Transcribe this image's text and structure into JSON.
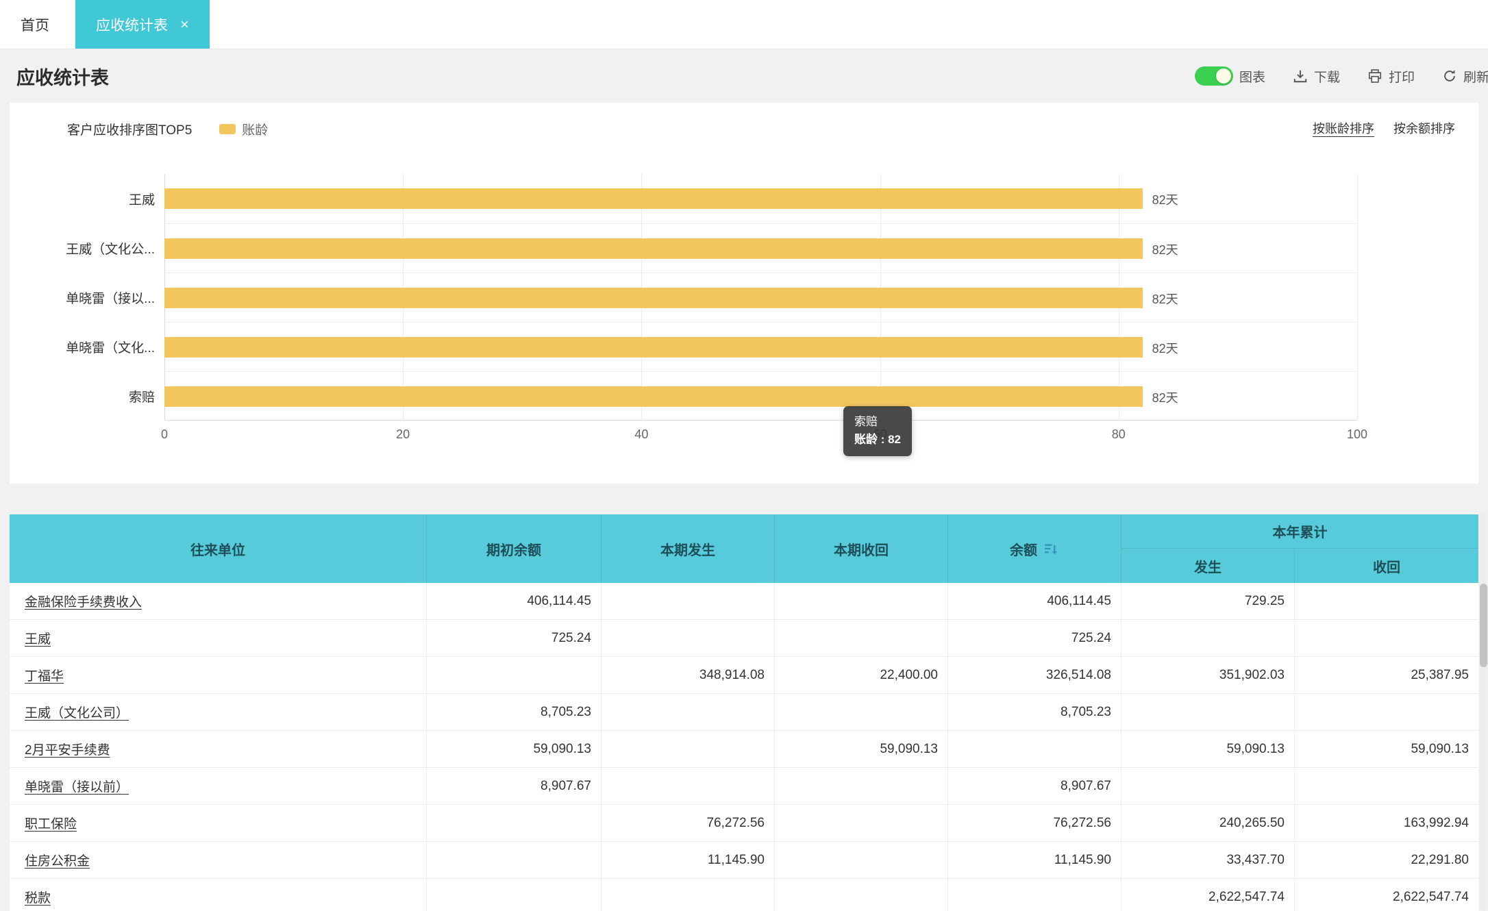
{
  "tab_bar": {
    "home_tab": "首页",
    "active_tab": "应收统计表",
    "close_icon": "×"
  },
  "page_header": {
    "title": "应收统计表",
    "chart_toggle_label": "图表",
    "download_label": "下载",
    "print_label": "打印",
    "refresh_label": "刷新"
  },
  "chart_panel": {
    "title": "客户应收排序图TOP5",
    "legend_label": "账龄",
    "sort_by_age_label": "按账龄排序",
    "sort_by_balance_label": "按余额排序",
    "tooltip": {
      "name": "索赔",
      "value_line": "账龄 : 82"
    }
  },
  "chart_data": {
    "type": "bar",
    "orientation": "horizontal",
    "title": "客户应收排序图TOP5",
    "categories": [
      "王威",
      "王威（文化公...",
      "单晓雷（接以...",
      "单晓雷（文化...",
      "索赔"
    ],
    "series": [
      {
        "name": "账龄",
        "values": [
          82,
          82,
          82,
          82,
          82
        ]
      }
    ],
    "bar_value_labels": [
      "82天",
      "82天",
      "82天",
      "82天",
      "82天"
    ],
    "x_ticks": [
      "0",
      "20",
      "40",
      "60",
      "80",
      "100"
    ],
    "xlim": [
      0,
      100
    ],
    "grid": true,
    "legend_position": "top-left",
    "bar_color": "#f3c65e"
  },
  "table": {
    "col_headers": {
      "partner": "往来单位",
      "opening_balance": "期初余额",
      "current_incurred": "本期发生",
      "current_received": "本期收回",
      "balance": "余额",
      "year_total": "本年累计",
      "year_incurred": "发生",
      "year_received": "收回"
    },
    "rows": [
      [
        "金融保险手续费收入",
        "406,114.45",
        "",
        "",
        "406,114.45",
        "729.25",
        ""
      ],
      [
        "王威",
        "725.24",
        "",
        "",
        "725.24",
        "",
        ""
      ],
      [
        "丁福华",
        "",
        "348,914.08",
        "22,400.00",
        "326,514.08",
        "351,902.03",
        "25,387.95"
      ],
      [
        "王威（文化公司）",
        "8,705.23",
        "",
        "",
        "8,705.23",
        "",
        ""
      ],
      [
        "2月平安手续费",
        "59,090.13",
        "",
        "59,090.13",
        "",
        "59,090.13",
        "59,090.13"
      ],
      [
        "单晓雷（接以前）",
        "8,907.67",
        "",
        "",
        "8,907.67",
        "",
        ""
      ],
      [
        "职工保险",
        "",
        "76,272.56",
        "",
        "76,272.56",
        "240,265.50",
        "163,992.94"
      ],
      [
        "住房公积金",
        "",
        "11,145.90",
        "",
        "11,145.90",
        "33,437.70",
        "22,291.80"
      ],
      [
        "税款",
        "",
        "",
        "",
        "",
        "2,622,547.74",
        "2,622,547.74"
      ]
    ]
  },
  "colors": {
    "accent_cyan": "#41c8d6",
    "table_header_cyan": "#57cbda",
    "bar_gold": "#f3c65e",
    "toggle_green": "#3bd04f"
  }
}
